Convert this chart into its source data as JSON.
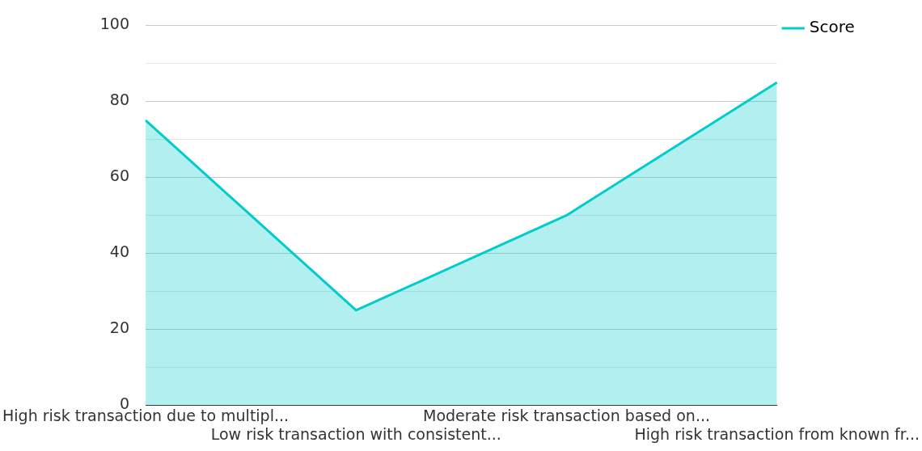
{
  "chart_data": {
    "type": "area",
    "categories": [
      "High risk transaction due to multipl...",
      "Low risk transaction with consistent...",
      "Moderate risk transaction based on...",
      "High risk transaction from known fr..."
    ],
    "series": [
      {
        "name": "Score",
        "color": "#00cccc",
        "values": [
          75,
          25,
          50,
          85
        ]
      }
    ],
    "ylim": [
      0,
      100
    ],
    "yticks": [
      0,
      {
        "value": 10,
        "label": null
      },
      20,
      {
        "value": 30,
        "label": null
      },
      40,
      {
        "value": 50,
        "label": null
      },
      60,
      {
        "value": 70,
        "label": null
      },
      80,
      {
        "value": 90,
        "label": null
      },
      100
    ],
    "grid": "y",
    "legend": "top right"
  }
}
